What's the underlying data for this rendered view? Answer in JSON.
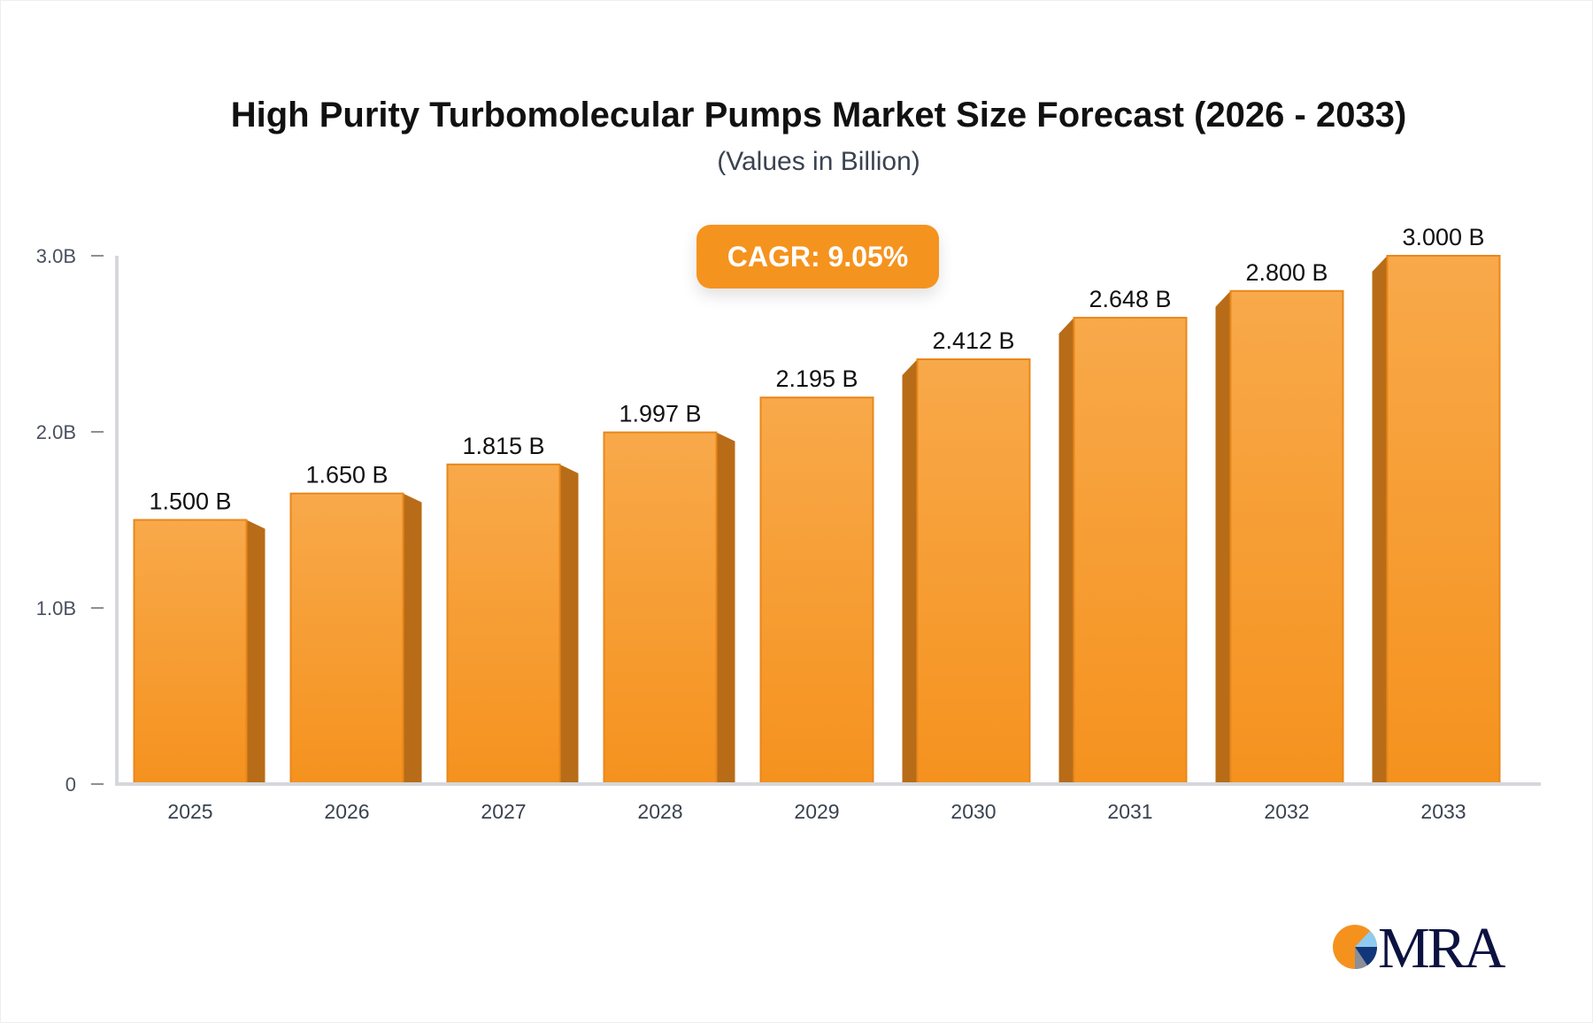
{
  "chart_data": {
    "type": "bar",
    "title": "High Purity Turbomolecular Pumps Market Size Forecast (2026 - 2033)",
    "subtitle": "(Values in Billion)",
    "categories": [
      "2025",
      "2026",
      "2027",
      "2028",
      "2029",
      "2030",
      "2031",
      "2032",
      "2033"
    ],
    "values": [
      1.5,
      1.65,
      1.815,
      1.997,
      2.195,
      2.412,
      2.648,
      2.8,
      3.0
    ],
    "data_labels": [
      "1.500 B",
      "1.650 B",
      "1.815 B",
      "1.997 B",
      "2.195 B",
      "2.412 B",
      "2.648 B",
      "2.800 B",
      "3.000 B"
    ],
    "yticks": [
      0,
      1,
      2,
      3
    ],
    "ytick_labels": [
      "0",
      "1.0B",
      "2.0B",
      "3.0B"
    ],
    "ylim": [
      0,
      3
    ],
    "xlabel": "",
    "ylabel": "",
    "grid": false,
    "legend": "none",
    "annotation": "CAGR: 9.05%",
    "colors": {
      "bar_top": "#F8A94A",
      "bar_bottom": "#F5921E",
      "bar_side": "#B86C17",
      "bar_edge": "#E8871C",
      "axis": "#D5D7DC",
      "badge": "#F5931F"
    }
  },
  "logo": {
    "text": "MRA"
  }
}
